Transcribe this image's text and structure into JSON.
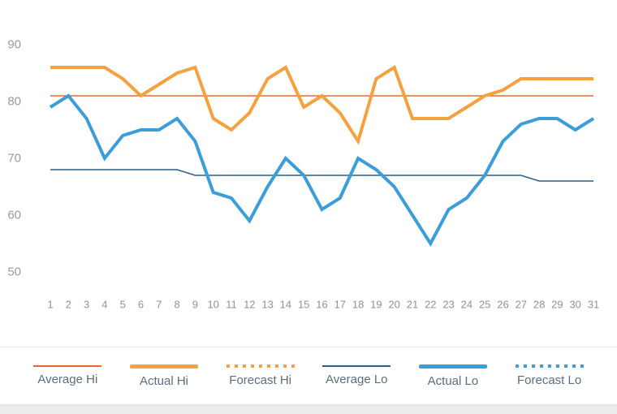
{
  "chart_data": {
    "type": "line",
    "title": "",
    "xlabel": "",
    "ylabel": "",
    "grid": false,
    "legend_position": "bottom",
    "ylim": [
      50,
      90
    ],
    "y_ticks": [
      90,
      80,
      70,
      60,
      50
    ],
    "x_categories": [
      1,
      2,
      3,
      4,
      5,
      6,
      7,
      8,
      9,
      10,
      11,
      12,
      13,
      14,
      15,
      16,
      17,
      18,
      19,
      20,
      21,
      22,
      23,
      24,
      25,
      26,
      27,
      28,
      29,
      30,
      31
    ],
    "series": [
      {
        "name": "Average Hi",
        "color": "#e8682e",
        "line_style": "solid-thin",
        "values": [
          81,
          81,
          81,
          81,
          81,
          81,
          81,
          81,
          81,
          81,
          81,
          81,
          81,
          81,
          81,
          81,
          81,
          81,
          81,
          81,
          81,
          81,
          81,
          81,
          81,
          81,
          81,
          81,
          81,
          81,
          81
        ]
      },
      {
        "name": "Actual Hi",
        "color": "#f6a140",
        "line_style": "solid-thick",
        "values": [
          86,
          86,
          86,
          86,
          84,
          81,
          83,
          85,
          86,
          77,
          75,
          78,
          84,
          86,
          79,
          81,
          78,
          73,
          84,
          86,
          77,
          77,
          77,
          79,
          81,
          82,
          84,
          84,
          84,
          84,
          84
        ]
      },
      {
        "name": "Forecast Hi",
        "color": "#f6a140",
        "line_style": "dotted",
        "values": []
      },
      {
        "name": "Average Lo",
        "color": "#2a5f8a",
        "line_style": "solid-thin",
        "values": [
          68,
          68,
          68,
          68,
          68,
          68,
          68,
          68,
          67,
          67,
          67,
          67,
          67,
          67,
          67,
          67,
          67,
          67,
          67,
          67,
          67,
          67,
          67,
          67,
          67,
          67,
          67,
          66,
          66,
          66,
          66
        ]
      },
      {
        "name": "Actual Lo",
        "color": "#3b9ed9",
        "line_style": "solid-thick",
        "values": [
          79,
          81,
          77,
          70,
          74,
          75,
          75,
          77,
          73,
          64,
          63,
          59,
          65,
          70,
          67,
          61,
          63,
          70,
          68,
          65,
          60,
          55,
          61,
          63,
          67,
          73,
          76,
          77,
          77,
          75,
          77
        ]
      },
      {
        "name": "Forecast Lo",
        "color": "#3b9ed9",
        "line_style": "dotted",
        "values": []
      }
    ]
  },
  "axis_text": {
    "y_labels": [
      "90",
      "80",
      "70",
      "60",
      "50"
    ],
    "x_labels": [
      "1",
      "2",
      "3",
      "4",
      "5",
      "6",
      "7",
      "8",
      "9",
      "10",
      "11",
      "12",
      "13",
      "14",
      "15",
      "16",
      "17",
      "18",
      "19",
      "20",
      "21",
      "22",
      "23",
      "24",
      "25",
      "26",
      "27",
      "28",
      "29",
      "30",
      "31"
    ]
  }
}
